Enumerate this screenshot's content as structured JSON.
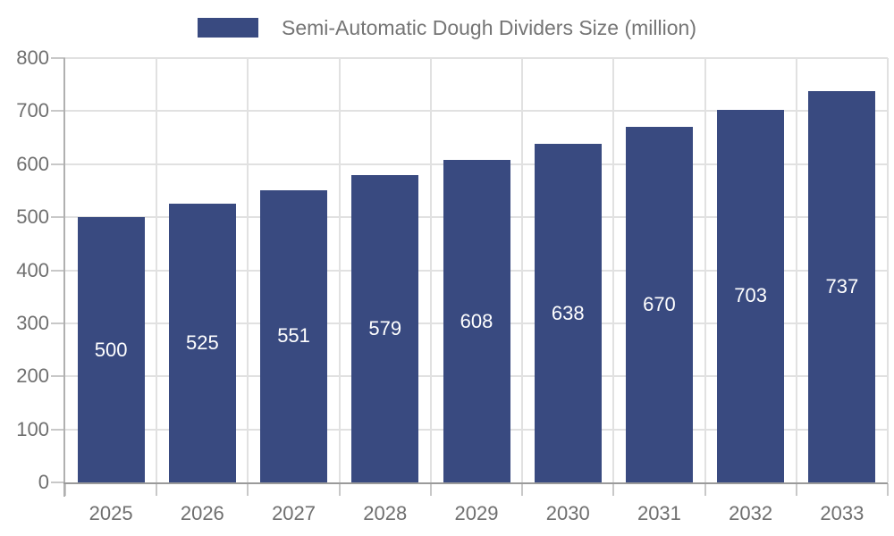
{
  "chart": {
    "legend_label": "Semi-Automatic Dough Dividers Size (million)"
  },
  "chart_data": {
    "type": "bar",
    "title": "Semi-Automatic Dough Dividers Size (million)",
    "categories": [
      "2025",
      "2026",
      "2027",
      "2028",
      "2029",
      "2030",
      "2031",
      "2032",
      "2033"
    ],
    "values": [
      500,
      525,
      551,
      579,
      608,
      638,
      670,
      703,
      737
    ],
    "xlabel": "",
    "ylabel": "",
    "ylim": [
      0,
      800
    ],
    "ytick_step": 100,
    "ytick_labels": [
      "0",
      "100",
      "200",
      "300",
      "400",
      "500",
      "600",
      "700",
      "800"
    ],
    "grid": true,
    "legend_position": "top",
    "value_labels_inside_bars": true,
    "colors": {
      "bar": "#394A80",
      "bar_value_text": "#ffffff",
      "axis_text": "#6f6f6f",
      "legend_text": "#757575",
      "gridline": "#e1e1e1",
      "tick": "#c8c8c8",
      "y_axis_line": "#b0b0b0",
      "x_axis_line": "#9a9a9a",
      "background": "#ffffff"
    }
  }
}
